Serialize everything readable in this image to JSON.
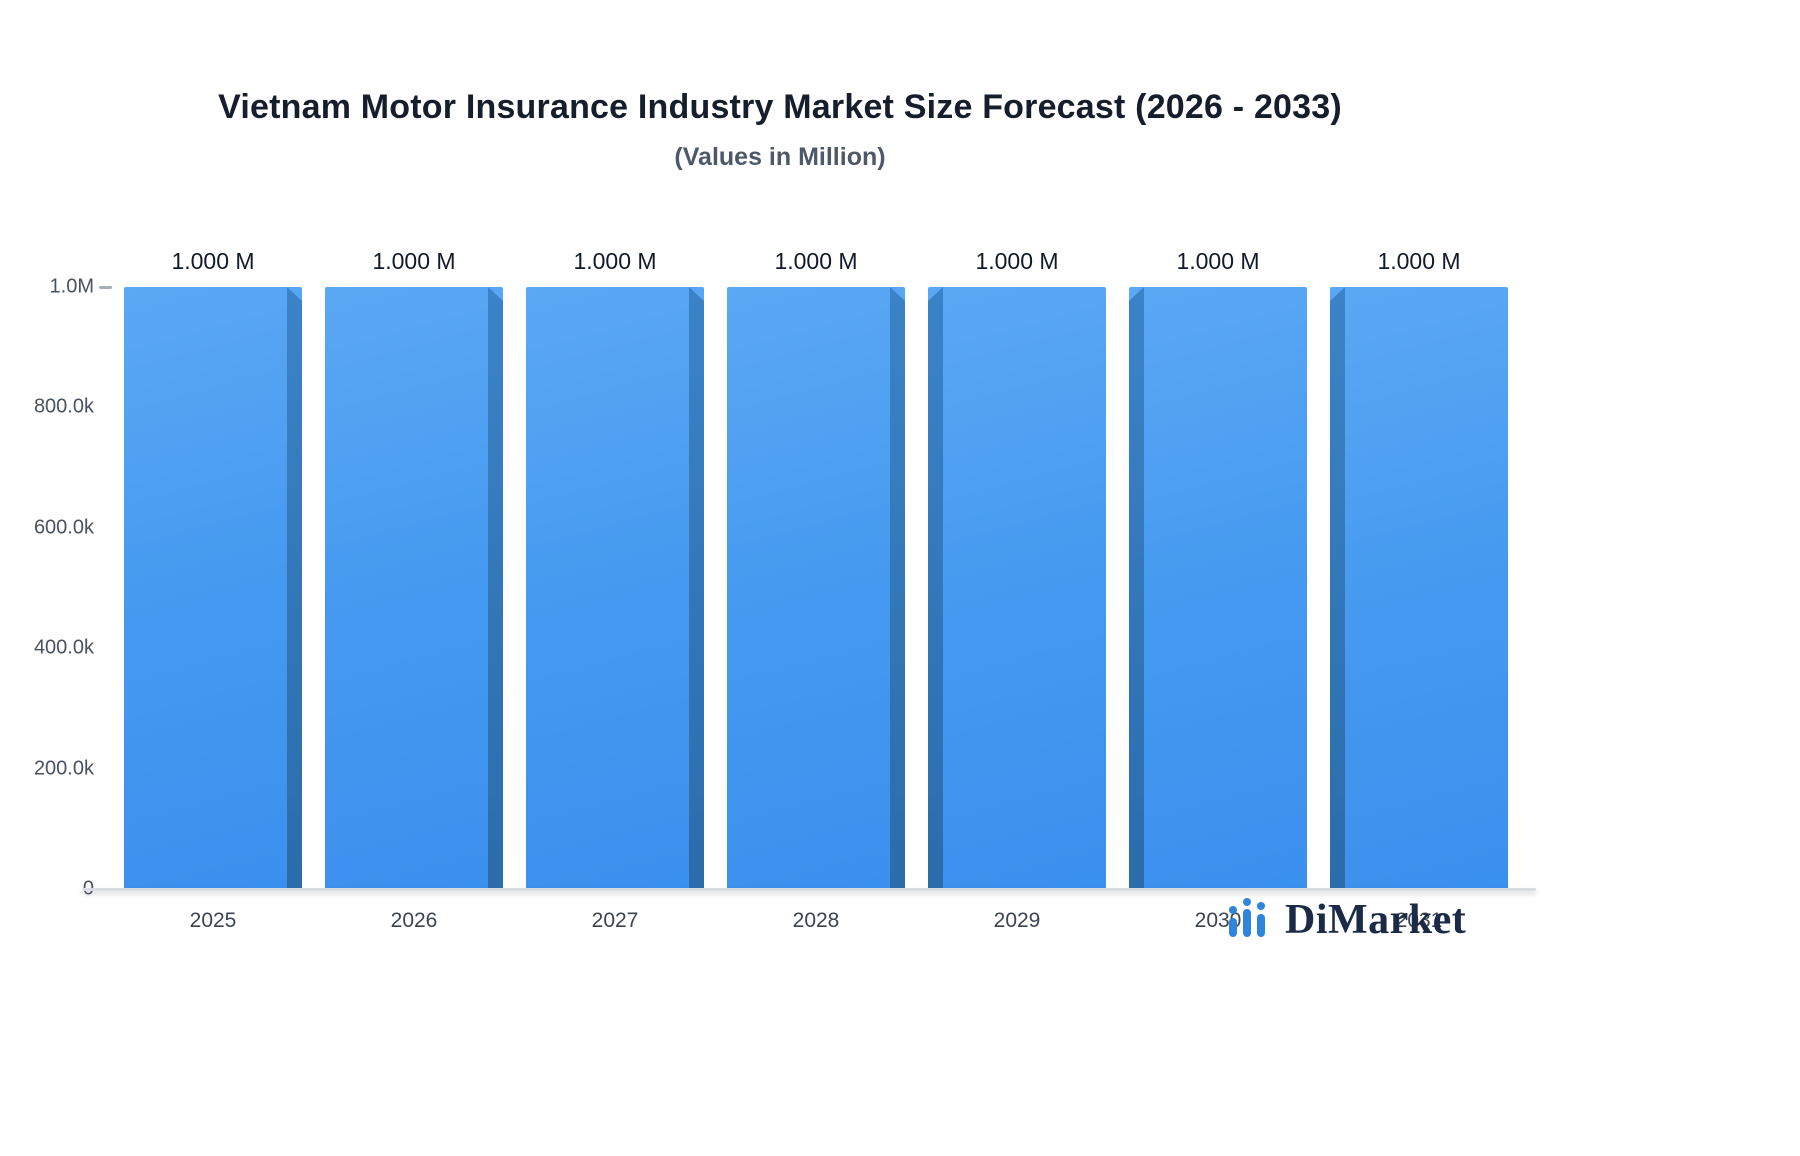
{
  "title": "Vietnam Motor Insurance Industry Market Size Forecast (2026 - 2033)",
  "subtitle": "(Values in Million)",
  "chart_data": {
    "type": "bar",
    "categories": [
      "2025",
      "2026",
      "2027",
      "2028",
      "2029",
      "2030",
      "2031"
    ],
    "values": [
      1000000,
      1000000,
      1000000,
      1000000,
      1000000,
      1000000,
      1000000
    ],
    "bar_labels": [
      "1.000 M",
      "1.000 M",
      "1.000 M",
      "1.000 M",
      "1.000 M",
      "1.000 M",
      "1.000 M"
    ],
    "title": "Vietnam Motor Insurance Industry Market Size Forecast (2026 - 2033)",
    "xlabel": "",
    "ylabel": "",
    "ylim": [
      0,
      1000000
    ],
    "y_ticks": [
      {
        "value": 1000000,
        "label": "1.0M"
      },
      {
        "value": 800000,
        "label": "800.0k"
      },
      {
        "value": 600000,
        "label": "600.0k"
      },
      {
        "value": 400000,
        "label": "400.0k"
      },
      {
        "value": 200000,
        "label": "200.0k"
      },
      {
        "value": 0,
        "label": "0"
      }
    ],
    "grid": false,
    "legend": false,
    "colors": {
      "bar_top": "#5ba8f4",
      "bar_mid": "#459af0",
      "bar_bottom": "#3a90ed",
      "bar_edge_top": "#3b83c8",
      "bar_edge_bottom": "#2b6cab",
      "brand_blue": "#2e85db",
      "brand_navy": "#1b2b47"
    }
  },
  "branding": {
    "logo_text": "DiMarket"
  }
}
